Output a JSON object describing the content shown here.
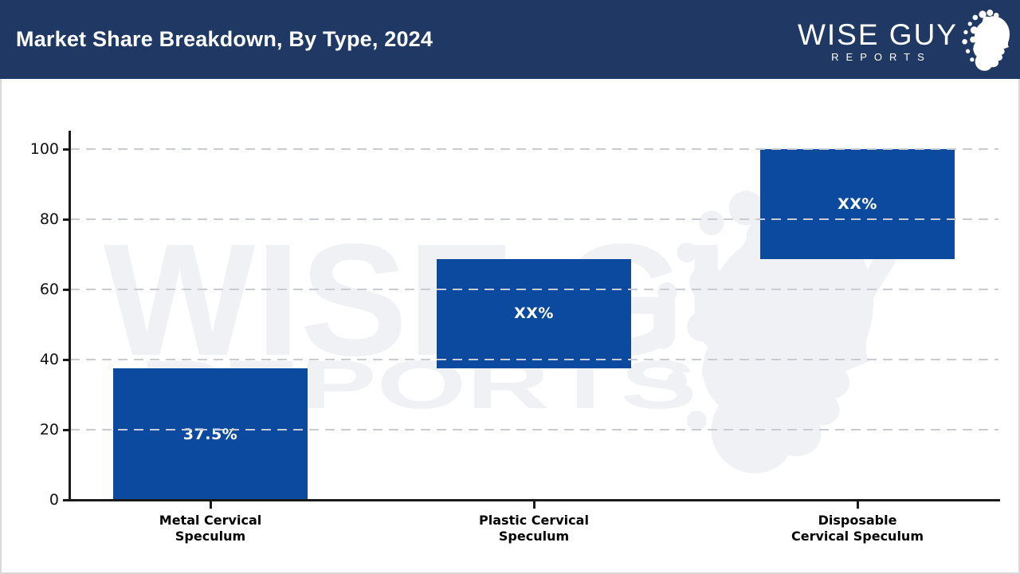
{
  "header": {
    "title": "Market Share Breakdown, By Type, 2024",
    "logo": {
      "line1": "WISE GUY",
      "line2": "REPORTS"
    }
  },
  "watermark": {
    "line1": "WISE GUY",
    "line2": "REPORTS"
  },
  "chart_data": {
    "type": "bar",
    "subtype": "floating-waterfall",
    "title": "Market Share Breakdown, By Type, 2024",
    "categories": [
      [
        "Metal Cervical",
        "Speculum"
      ],
      [
        "Plastic Cervical",
        "Speculum"
      ],
      [
        "Disposable",
        "Cervical Speculum"
      ]
    ],
    "series": [
      {
        "name": "Market share (%)",
        "segments": [
          {
            "category": "Metal Cervical Speculum",
            "from": 0,
            "to": 37.5,
            "label": "37.5%"
          },
          {
            "category": "Plastic Cervical Speculum",
            "from": 37.5,
            "to": 68.75,
            "label": "XX%"
          },
          {
            "category": "Disposable Cervical Speculum",
            "from": 68.75,
            "to": 100,
            "label": "XX%"
          }
        ]
      }
    ],
    "ylim": [
      0,
      100
    ],
    "yticks": [
      0,
      20,
      40,
      60,
      80,
      100
    ],
    "xlabel": "",
    "ylabel": "",
    "grid": "horizontal-dashed",
    "legend": "none",
    "bar_color": "#0b4a9f",
    "bar_label_color": "#ffffff"
  },
  "colors": {
    "header_bg": "#203864",
    "title_text": "#ffffff",
    "bar": "#0b4a9f",
    "grid": "#c9ccd2",
    "axis": "#1a1a1a",
    "tick_text": "#111111",
    "watermark": "#f0f1f4",
    "border": "#d9d9d9",
    "background": "#ffffff"
  }
}
